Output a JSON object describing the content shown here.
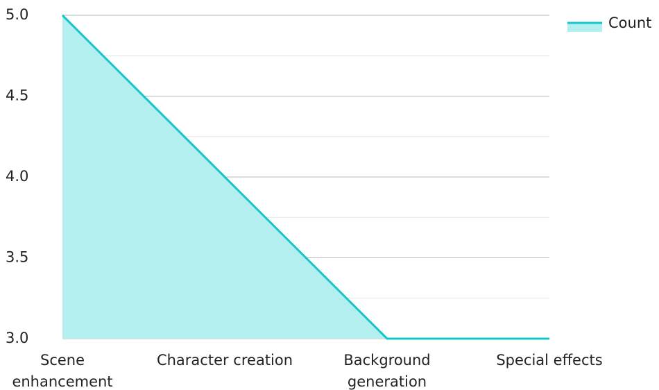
{
  "chart_data": {
    "type": "area",
    "categories": [
      [
        "Scene",
        "enhancement"
      ],
      [
        "Character creation"
      ],
      [
        "Background",
        "generation"
      ],
      [
        "Special effects"
      ]
    ],
    "series": [
      {
        "name": "Count",
        "values": [
          5,
          4,
          3,
          3
        ]
      }
    ],
    "y_ticks": [
      "3.0",
      "3.5",
      "4.0",
      "4.5",
      "5.0"
    ],
    "ylim": [
      3,
      5
    ],
    "grid": true,
    "legend_position": "top-right",
    "colors": {
      "line": "#16c6c8",
      "fill": "#b3efee",
      "grid_major": "#b8b8b8",
      "grid_minor": "#e4e4e4",
      "text": "#222222"
    }
  }
}
